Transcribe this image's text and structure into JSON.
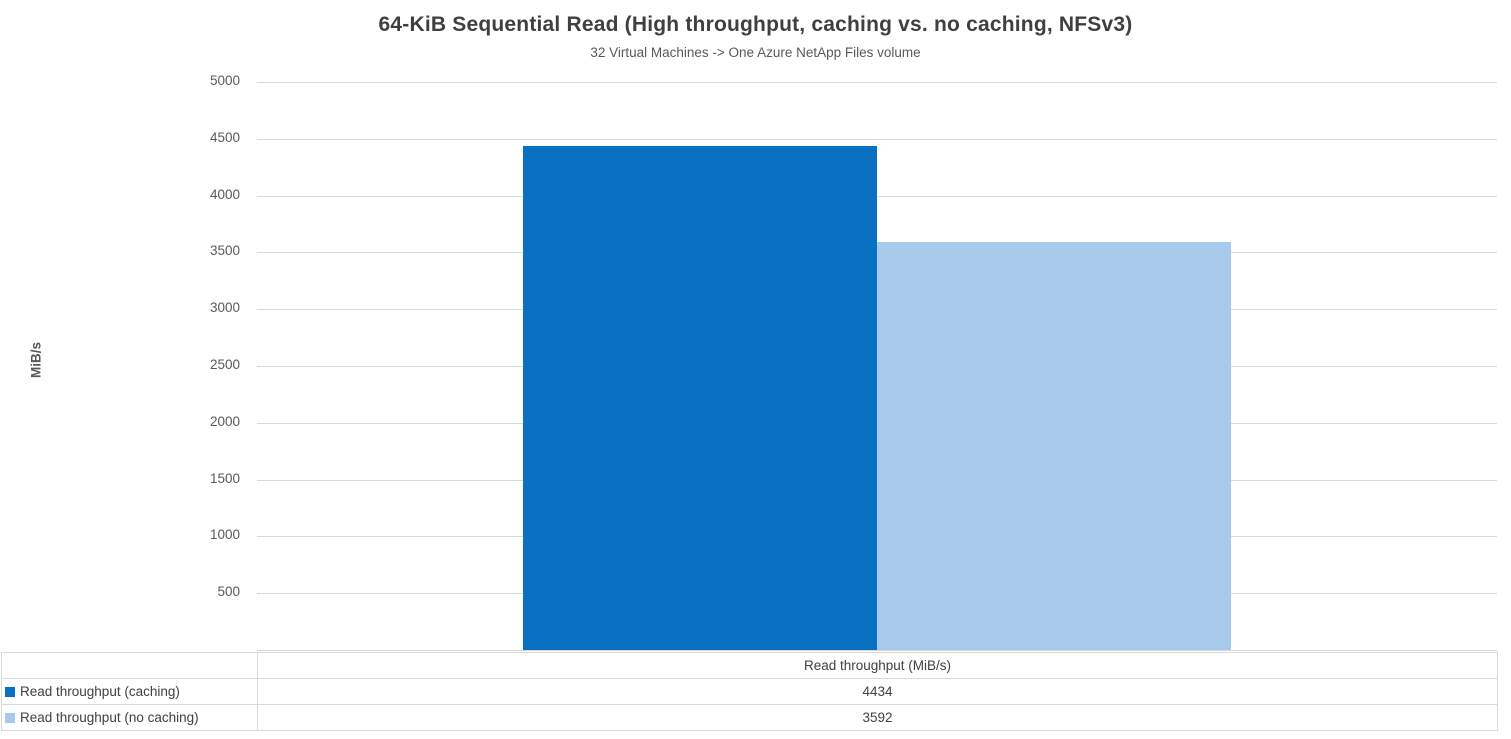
{
  "chart_data": {
    "type": "bar",
    "title": "64-KiB Sequential Read (High throughput, caching vs. no caching, NFSv3)",
    "subtitle": "32 Virtual Machines -> One Azure NetApp Files volume",
    "ylabel": "MiB/s",
    "xlabel": "",
    "ylim": [
      0,
      5000
    ],
    "ytick_interval": 500,
    "grid": true,
    "legend_position": "data-table-left",
    "categories": [
      "Read throughput (MiB/s)"
    ],
    "series": [
      {
        "name": "Read throughput (caching)",
        "values": [
          4434
        ],
        "color": "#0a70c2"
      },
      {
        "name": "Read throughput (no caching)",
        "values": [
          3592
        ],
        "color": "#a7c9ea"
      }
    ]
  },
  "table": {
    "header": "Read throughput (MiB/s)",
    "rows": [
      {
        "label": "Read throughput (caching)",
        "value": "4434"
      },
      {
        "label": "Read throughput (no caching)",
        "value": "3592"
      }
    ]
  }
}
